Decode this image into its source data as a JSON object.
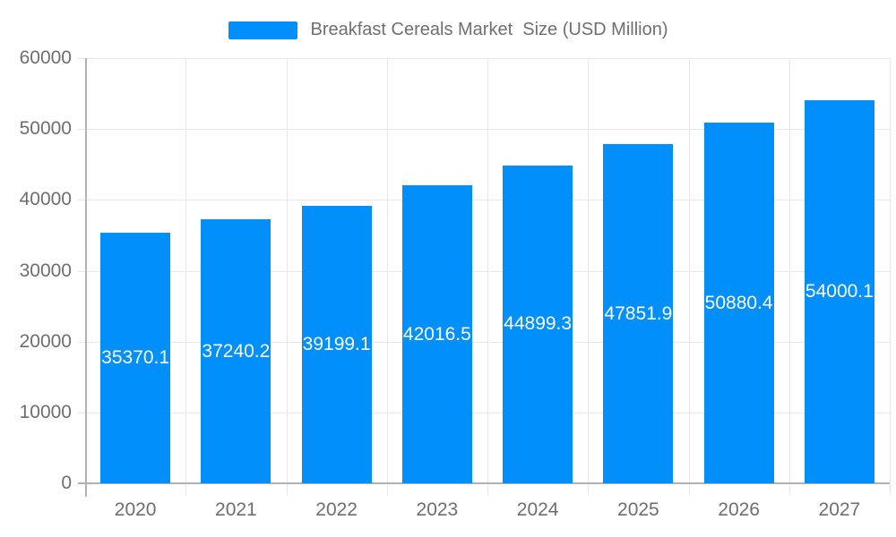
{
  "chart_data": {
    "type": "bar",
    "title": "Breakfast Cereals Market  Size (USD Million)",
    "categories": [
      "2020",
      "2021",
      "2022",
      "2023",
      "2024",
      "2025",
      "2026",
      "2027"
    ],
    "values": [
      35370.1,
      37240.2,
      39199.1,
      42016.5,
      44899.3,
      47851.9,
      50880.4,
      54000.1
    ],
    "value_labels": [
      "35370.1",
      "37240.2",
      "39199.1",
      "42016.5",
      "44899.3",
      "47851.9",
      "50880.4",
      "54000.1"
    ],
    "series_name": "Breakfast Cereals Market  Size (USD Million)",
    "ylim": [
      0,
      60000
    ],
    "yticks": [
      0,
      10000,
      20000,
      30000,
      40000,
      50000,
      60000
    ],
    "ytick_labels": [
      "0",
      "10000",
      "20000",
      "30000",
      "40000",
      "50000",
      "60000"
    ],
    "xlabel": "",
    "ylabel": "",
    "grid": true,
    "legend_position": "top",
    "colors": {
      "bar": "#008FFB",
      "grid": "#e7e7e7",
      "axis": "#b1b1b1",
      "tick_text": "#6e6e6e",
      "legend_text": "#6f6f6f",
      "data_label": "#ffffff",
      "background": "#ffffff"
    }
  }
}
